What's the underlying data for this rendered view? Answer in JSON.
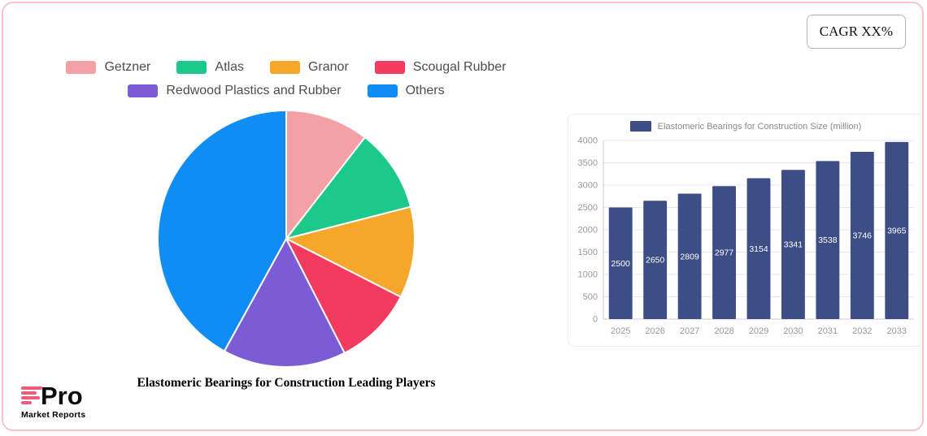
{
  "cagr_badge": {
    "label": "CAGR XX%"
  },
  "logo": {
    "name": "Pro",
    "subtitle": "Market Reports"
  },
  "colors": {
    "card_border": "#f8c3cd",
    "logo_accent": "#ee5c77",
    "grid": "#e7e7e7",
    "axis": "#cccccc",
    "tick_text": "#999999",
    "bar_value_text": "#ffffff",
    "legend_text": "#4d4d4d"
  },
  "chart_data": [
    {
      "type": "pie",
      "title": "Elastomeric Bearings for Construction Leading Players",
      "labels": [
        "Getzner",
        "Atlas",
        "Granor",
        "Scougal Rubber",
        "Redwood Plastics and Rubber",
        "Others"
      ],
      "values": [
        10.5,
        10.5,
        11.5,
        10,
        15.5,
        42
      ],
      "colors": [
        "#f4a1a6",
        "#1cc98b",
        "#f5a72b",
        "#f23b5f",
        "#7c5cd6",
        "#0f8df5"
      ],
      "legend_position": "top"
    },
    {
      "type": "bar",
      "title": "Elastomeric Bearings for Construction Size (million)",
      "categories": [
        "2025",
        "2026",
        "2027",
        "2028",
        "2029",
        "2030",
        "2031",
        "2032",
        "2033"
      ],
      "values": [
        2500,
        2650,
        2809,
        2977,
        3154,
        3341,
        3538,
        3746,
        3965
      ],
      "ylim": [
        0,
        4000
      ],
      "yticks": [
        0,
        500,
        1000,
        1500,
        2000,
        2500,
        3000,
        3500,
        4000
      ],
      "bar_color": "#3d4d85",
      "grid": true,
      "legend_position": "top"
    }
  ]
}
